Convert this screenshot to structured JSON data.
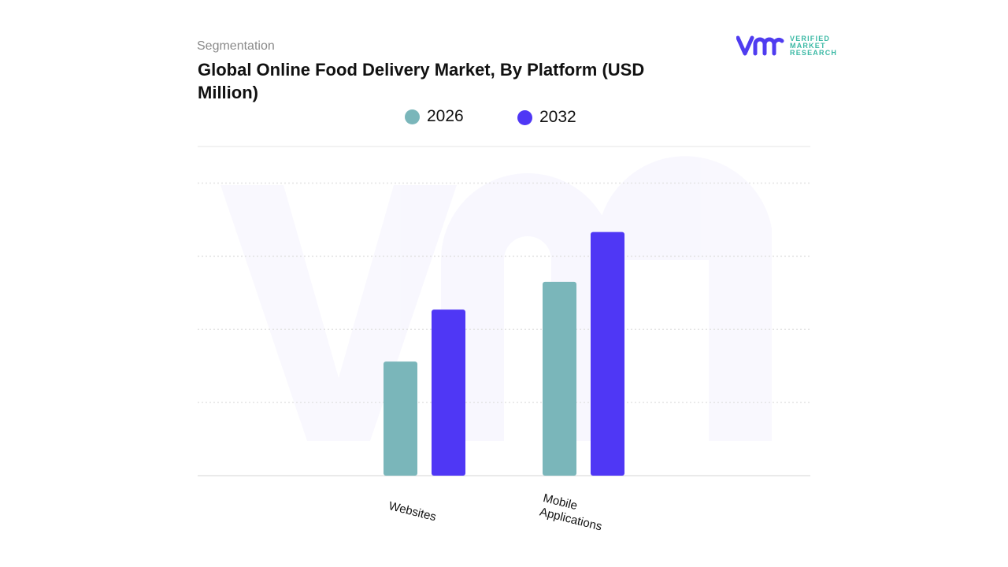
{
  "header": {
    "segment_label": "Segmentation",
    "title": "Global Online Food Delivery Market, By Platform (USD Million)"
  },
  "logo": {
    "mark": "vmr",
    "line1": "VERIFIED",
    "line2": "MARKET",
    "line3": "RESEARCH",
    "color": "#4f3cf0",
    "text_color": "#3bb9a5"
  },
  "chart_data": {
    "type": "bar",
    "title": "Global Online Food Delivery Market, By Platform (USD Million)",
    "categories": [
      "Websites",
      "Mobile Applications"
    ],
    "series": [
      {
        "name": "2026",
        "color": "#7ab6ba",
        "values": [
          1.56,
          2.65
        ]
      },
      {
        "name": "2032",
        "color": "#4f37f5",
        "values": [
          2.27,
          3.33
        ]
      }
    ],
    "ylim": [
      0,
      4.5
    ],
    "y_ticks_labeled": false,
    "grid": true,
    "legend": "top-center",
    "note": ""
  }
}
